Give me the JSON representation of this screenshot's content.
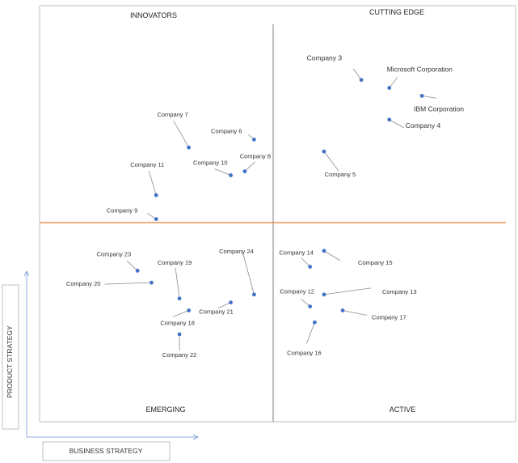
{
  "chart_data": {
    "type": "scatter",
    "title": "",
    "xlabel": "BUSINESS STRATEGY",
    "ylabel": "PRODUCT STRATEGY",
    "xlim": [
      0,
      100
    ],
    "ylim": [
      0,
      100
    ],
    "grid": false,
    "quadrants": {
      "top_left": "INNOVATORS",
      "top_right": "CUTTING EDGE",
      "bottom_left": "EMERGING",
      "bottom_right": "ACTIVE"
    },
    "colors": {
      "point": "#4472c4",
      "divider_h": "#ed7d31",
      "divider_v": "#7f7f7f",
      "leader": "#8c8c8c",
      "axis_arrow": "#8faadc"
    },
    "points": [
      {
        "name": "Company 3",
        "x": 69,
        "y": 86
      },
      {
        "name": "Microsoft Corporation",
        "x": 75,
        "y": 84
      },
      {
        "name": "IBM Corporation",
        "x": 82,
        "y": 82
      },
      {
        "name": "Company 4",
        "x": 75,
        "y": 76
      },
      {
        "name": "Company 5",
        "x": 61,
        "y": 68
      },
      {
        "name": "Company 7",
        "x": 32,
        "y": 69
      },
      {
        "name": "Company 6",
        "x": 46,
        "y": 71
      },
      {
        "name": "Company 10",
        "x": 41,
        "y": 62
      },
      {
        "name": "Company 8",
        "x": 44,
        "y": 63
      },
      {
        "name": "Company 11",
        "x": 25,
        "y": 57
      },
      {
        "name": "Company 9",
        "x": 25,
        "y": 51
      },
      {
        "name": "Company 23",
        "x": 21,
        "y": 38
      },
      {
        "name": "Company 20",
        "x": 24,
        "y": 35
      },
      {
        "name": "Company 19",
        "x": 30,
        "y": 31
      },
      {
        "name": "Company 24",
        "x": 46,
        "y": 32
      },
      {
        "name": "Company 21",
        "x": 41,
        "y": 30
      },
      {
        "name": "Company 18",
        "x": 32,
        "y": 28
      },
      {
        "name": "Company 22",
        "x": 30,
        "y": 22
      },
      {
        "name": "Company 14",
        "x": 58,
        "y": 39
      },
      {
        "name": "Company 15",
        "x": 61,
        "y": 43
      },
      {
        "name": "Company 13",
        "x": 61,
        "y": 32
      },
      {
        "name": "Company 12",
        "x": 58,
        "y": 29
      },
      {
        "name": "Company 17",
        "x": 65,
        "y": 28
      },
      {
        "name": "Company 16",
        "x": 59,
        "y": 25
      }
    ]
  }
}
